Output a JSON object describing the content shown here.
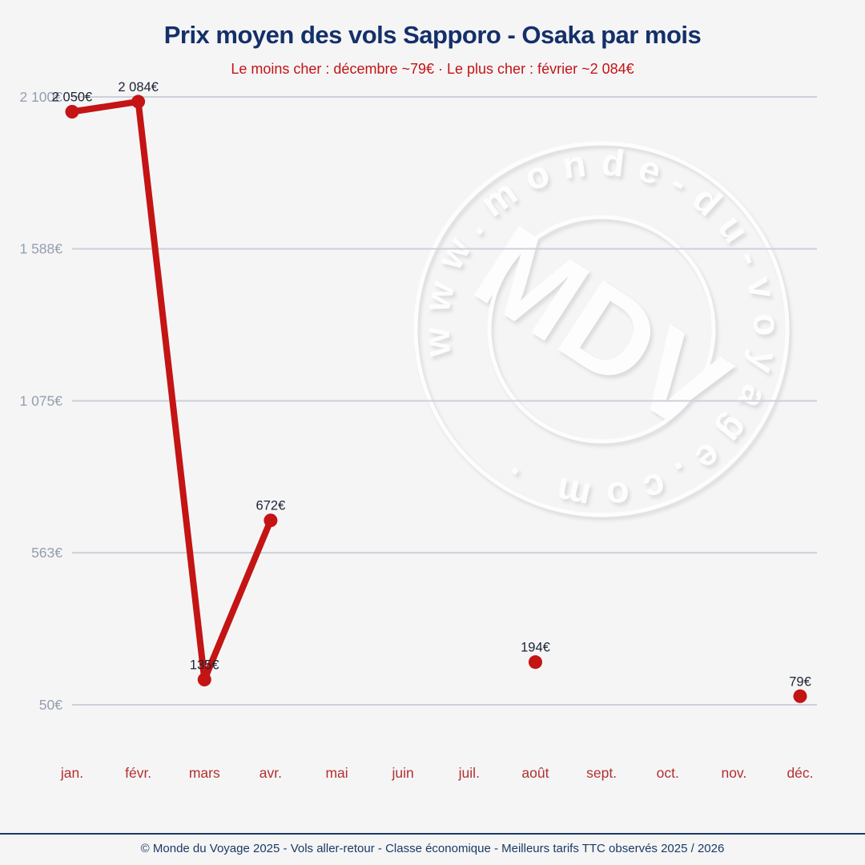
{
  "title": "Prix moyen des vols Sapporo - Osaka par mois",
  "subtitle": "Le moins cher : décembre ~79€ · Le plus cher : février ~2 084€",
  "footer": {
    "text": "© Monde du Voyage 2025 - Vols aller-retour - Classe économique - Meilleurs tarifs TTC observés 2025 / 2026"
  },
  "watermark": {
    "ring_text": "www.monde-du-voyage.com ·",
    "center_text": "MDV"
  },
  "colors": {
    "background": "#f5f5f6",
    "title": "#143069",
    "subtitle": "#c41414",
    "line": "#c41414",
    "grid": "#ccd1d9",
    "axis_y": "#949eb0",
    "axis_x": "#b33030",
    "point_label": "#1b2433",
    "footer": "#1a3a64",
    "watermark": "#ffffff"
  },
  "chart_data": {
    "type": "line",
    "title": "Prix moyen des vols Sapporo - Osaka par mois",
    "unit": "€",
    "categories": [
      "jan.",
      "févr.",
      "mars",
      "avr.",
      "mai",
      "juin",
      "juil.",
      "août",
      "sept.",
      "oct.",
      "nov.",
      "déc."
    ],
    "values": [
      2050,
      2084,
      135,
      672,
      null,
      null,
      null,
      194,
      null,
      null,
      null,
      79
    ],
    "point_labels": [
      "2 050€",
      "2 084€",
      "135€",
      "672€",
      null,
      null,
      null,
      "194€",
      null,
      null,
      null,
      "79€"
    ],
    "y_ticks": [
      {
        "value": 2100,
        "label": "2 100€"
      },
      {
        "value": 1588,
        "label": "1 588€"
      },
      {
        "value": 1075,
        "label": "1 075€"
      },
      {
        "value": 563,
        "label": "563€"
      },
      {
        "value": 50,
        "label": "50€"
      }
    ],
    "ylim": [
      50,
      2100
    ],
    "grid": true,
    "legend": false,
    "connect_rule": "consecutive-non-null-months"
  }
}
